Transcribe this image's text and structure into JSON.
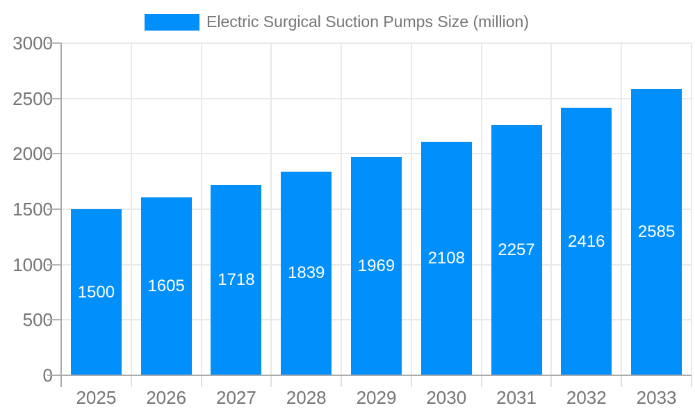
{
  "chart_data": {
    "type": "bar",
    "title": "Electric Surgical Suction Pumps Size (million)",
    "categories": [
      "2025",
      "2026",
      "2027",
      "2028",
      "2029",
      "2030",
      "2031",
      "2032",
      "2033"
    ],
    "values": [
      1500,
      1605,
      1718,
      1839,
      1969,
      2108,
      2257,
      2416,
      2585
    ],
    "series": [
      {
        "name": "Electric Surgical Suction Pumps Size (million)",
        "values": [
          1500,
          1605,
          1718,
          1839,
          1969,
          2108,
          2257,
          2416,
          2585
        ]
      }
    ],
    "xlabel": "",
    "ylabel": "",
    "ylim": [
      0,
      3000
    ],
    "ytick_step": 500,
    "yticks": [
      0,
      500,
      1000,
      1500,
      2000,
      2500,
      3000
    ],
    "grid": true,
    "legend_position": "top-center",
    "value_labels": "inside-center",
    "colors": {
      "bar": "#008FFB",
      "grid": "#e9e9e9",
      "axis": "#ababab",
      "tick": "#b3b3b3",
      "boundary_tick": "#e0e0e0",
      "text": "#757575",
      "bar_label": "#ffffff",
      "background": "#ffffff"
    }
  }
}
